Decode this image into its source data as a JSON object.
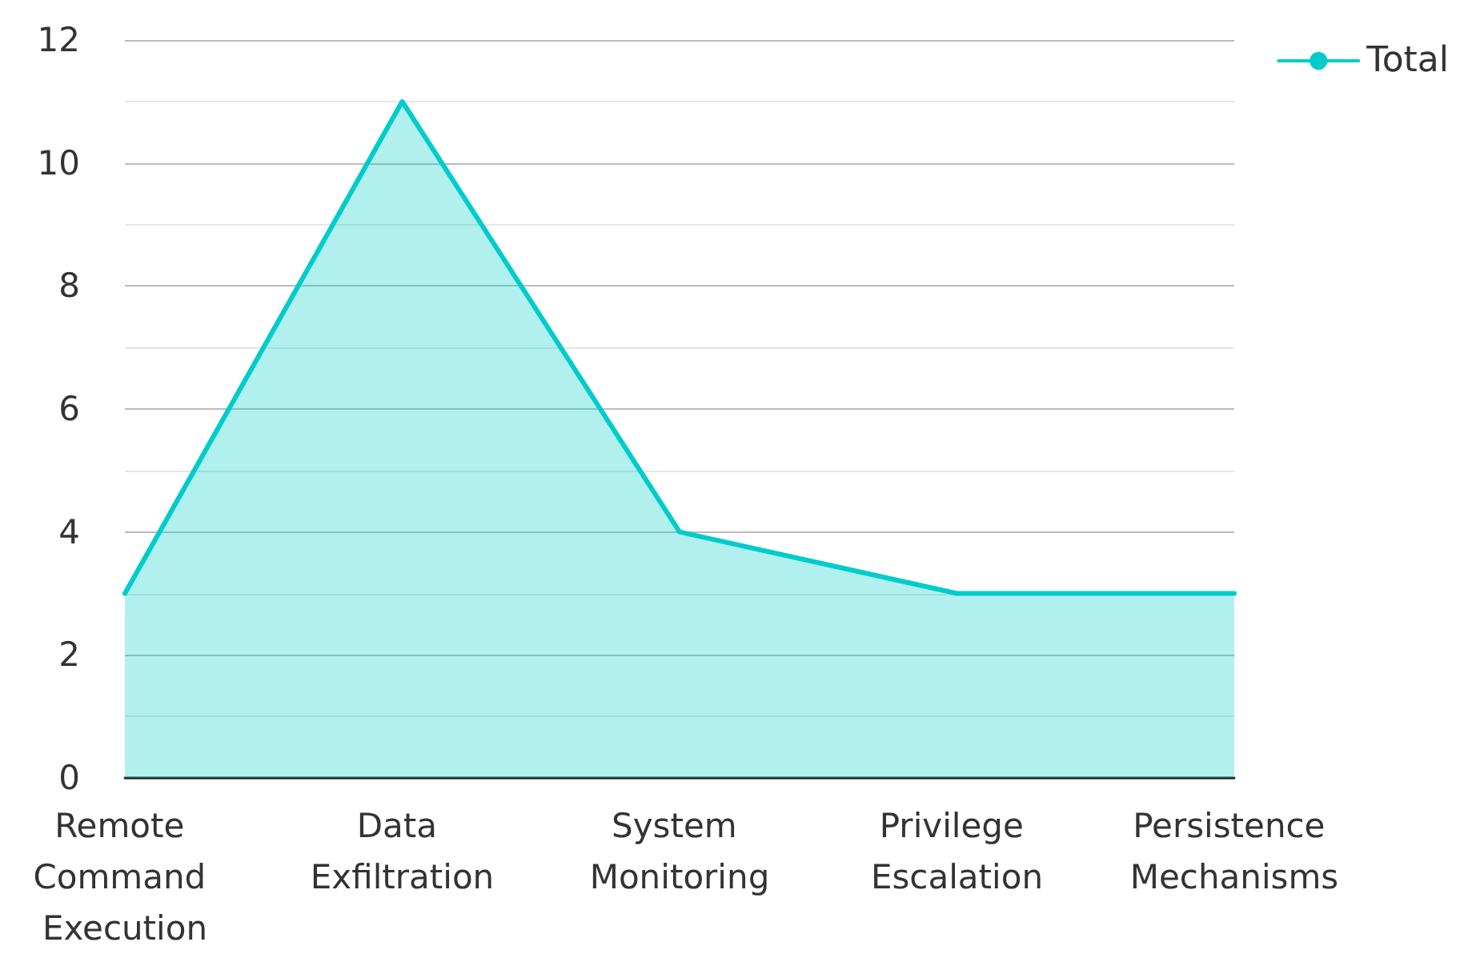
{
  "chart_data": {
    "type": "area",
    "categories": [
      "Remote Command Execution",
      "Data Exfiltration",
      "System Monitoring",
      "Privilege Escalation",
      "Persistence Mechanisms"
    ],
    "series": [
      {
        "name": "Total",
        "color": "#00cccc",
        "values": [
          3,
          11,
          4,
          3,
          3
        ]
      }
    ],
    "ylim": [
      0,
      12
    ],
    "yticks": [
      0,
      {
        "value": 1,
        "label": null
      },
      2,
      {
        "value": 3,
        "label": null
      },
      4,
      {
        "value": 5,
        "label": null
      },
      6,
      {
        "value": 7,
        "label": null
      },
      8,
      {
        "value": 9,
        "label": null
      },
      10,
      {
        "value": 11,
        "label": null
      },
      12
    ],
    "grid": "y",
    "legend": "top right",
    "marker": "none"
  }
}
